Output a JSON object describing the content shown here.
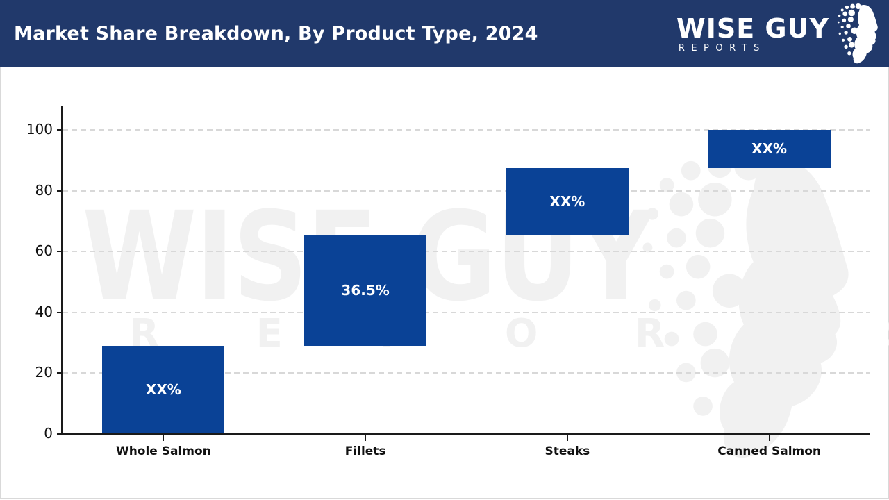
{
  "header": {
    "title": "Market Share Breakdown, By Product Type, 2024",
    "logo": {
      "line1": "WISE GUY",
      "line2": "REPORTS"
    }
  },
  "watermark": {
    "line1": "WISE GUY",
    "line2": "R E P O R T S"
  },
  "colors": {
    "header_bg": "#21396B",
    "header_text": "#FFFFFF",
    "bar_fill": "#0A4296",
    "bar_label": "#FFFFFF",
    "gridline": "#D8D8D8",
    "axis": "#1A1A1A",
    "watermark": "#F1F1F1",
    "frame_border": "#D9D9D9"
  },
  "chart_data": {
    "type": "bar",
    "subtype": "floating-waterfall",
    "title": "Market Share Breakdown, By Product Type, 2024",
    "categories": [
      "Whole Salmon",
      "Fillets",
      "Steaks",
      "Canned Salmon"
    ],
    "bars": [
      {
        "category": "Whole Salmon",
        "start": 0,
        "end": 29,
        "label": "XX%"
      },
      {
        "category": "Fillets",
        "start": 29,
        "end": 65.5,
        "label": "36.5%"
      },
      {
        "category": "Steaks",
        "start": 65.5,
        "end": 87.5,
        "label": "XX%"
      },
      {
        "category": "Canned Salmon",
        "start": 87.5,
        "end": 100,
        "label": "XX%"
      }
    ],
    "xlabel": "",
    "ylabel": "",
    "ylim": [
      0,
      107
    ],
    "yticks": [
      0,
      20,
      40,
      60,
      80,
      100
    ],
    "grid": "horizontal-dashed",
    "legend": "none",
    "bar_color": "#0A4296",
    "bar_label_color": "#FFFFFF"
  }
}
